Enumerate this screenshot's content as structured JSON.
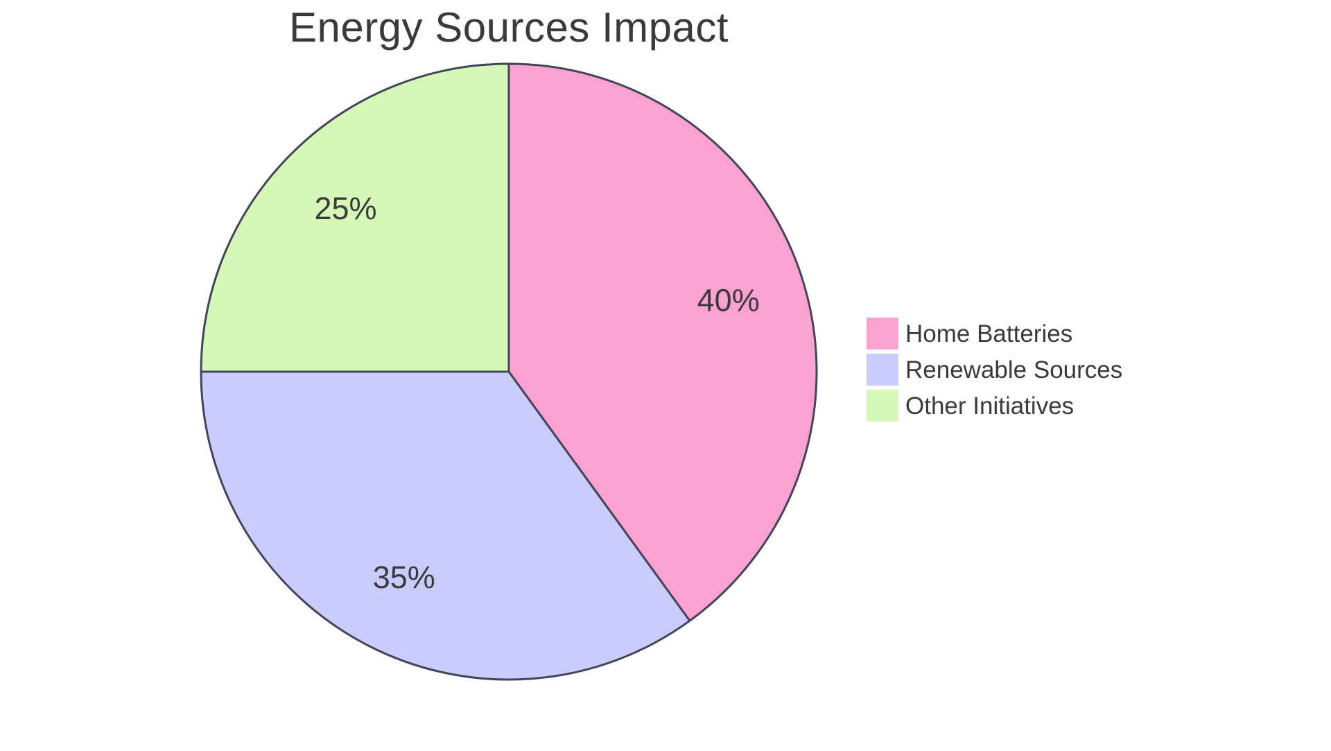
{
  "page": {
    "background": "#ffffff"
  },
  "chart_data": {
    "type": "pie",
    "title": "Energy Sources Impact",
    "series": [
      {
        "name": "Home Batteries",
        "value": 40,
        "label": "40%",
        "color": "#fba2d0"
      },
      {
        "name": "Renewable Sources",
        "value": 35,
        "label": "35%",
        "color": "#cacdfc"
      },
      {
        "name": "Other Initiatives",
        "value": 25,
        "label": "25%",
        "color": "#d6f8b7"
      }
    ],
    "start_angle_deg": -90,
    "direction": "clockwise",
    "label_radius_ratio": 0.75,
    "stroke_color": "#424459",
    "stroke_width": 3,
    "label_color": "#3b3b3d",
    "legend_position": "right"
  }
}
